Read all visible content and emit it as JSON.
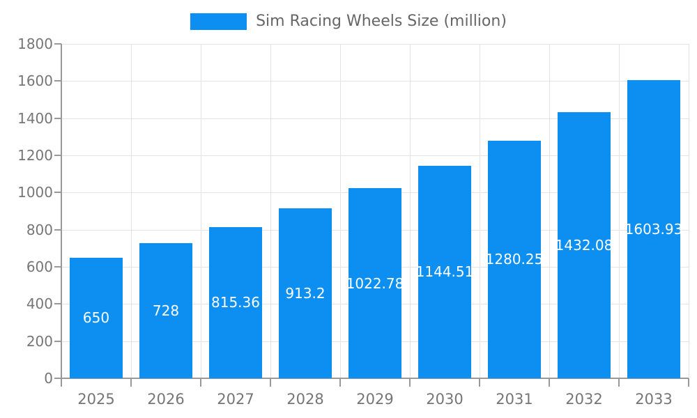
{
  "legend": {
    "label": "Sim Racing Wheels Size (million)",
    "swatch_color": "#0d8ff2"
  },
  "chart_data": {
    "type": "bar",
    "title": "Sim Racing Wheels Size (million)",
    "categories": [
      "2025",
      "2026",
      "2027",
      "2028",
      "2029",
      "2030",
      "2031",
      "2032",
      "2033"
    ],
    "values": [
      650,
      728,
      815.36,
      913.2,
      1022.78,
      1144.51,
      1280.25,
      1432.08,
      1603.93
    ],
    "value_labels": [
      "650",
      "728",
      "815.36",
      "913.2",
      "1022.78",
      "1144.51",
      "1280.25",
      "1432.08",
      "1603.93"
    ],
    "xlabel": "",
    "ylabel": "",
    "ylim": [
      0,
      1800
    ],
    "yticks": [
      0,
      200,
      400,
      600,
      800,
      1000,
      1200,
      1400,
      1600,
      1800
    ],
    "grid": true,
    "legend_position": "top-center",
    "colors": {
      "bar": "#0d8ff2",
      "bar_label": "#ffffff",
      "tick_text": "#767676",
      "legend_text": "#666666",
      "grid": "#e3e3e3",
      "axis": "#999999"
    }
  }
}
